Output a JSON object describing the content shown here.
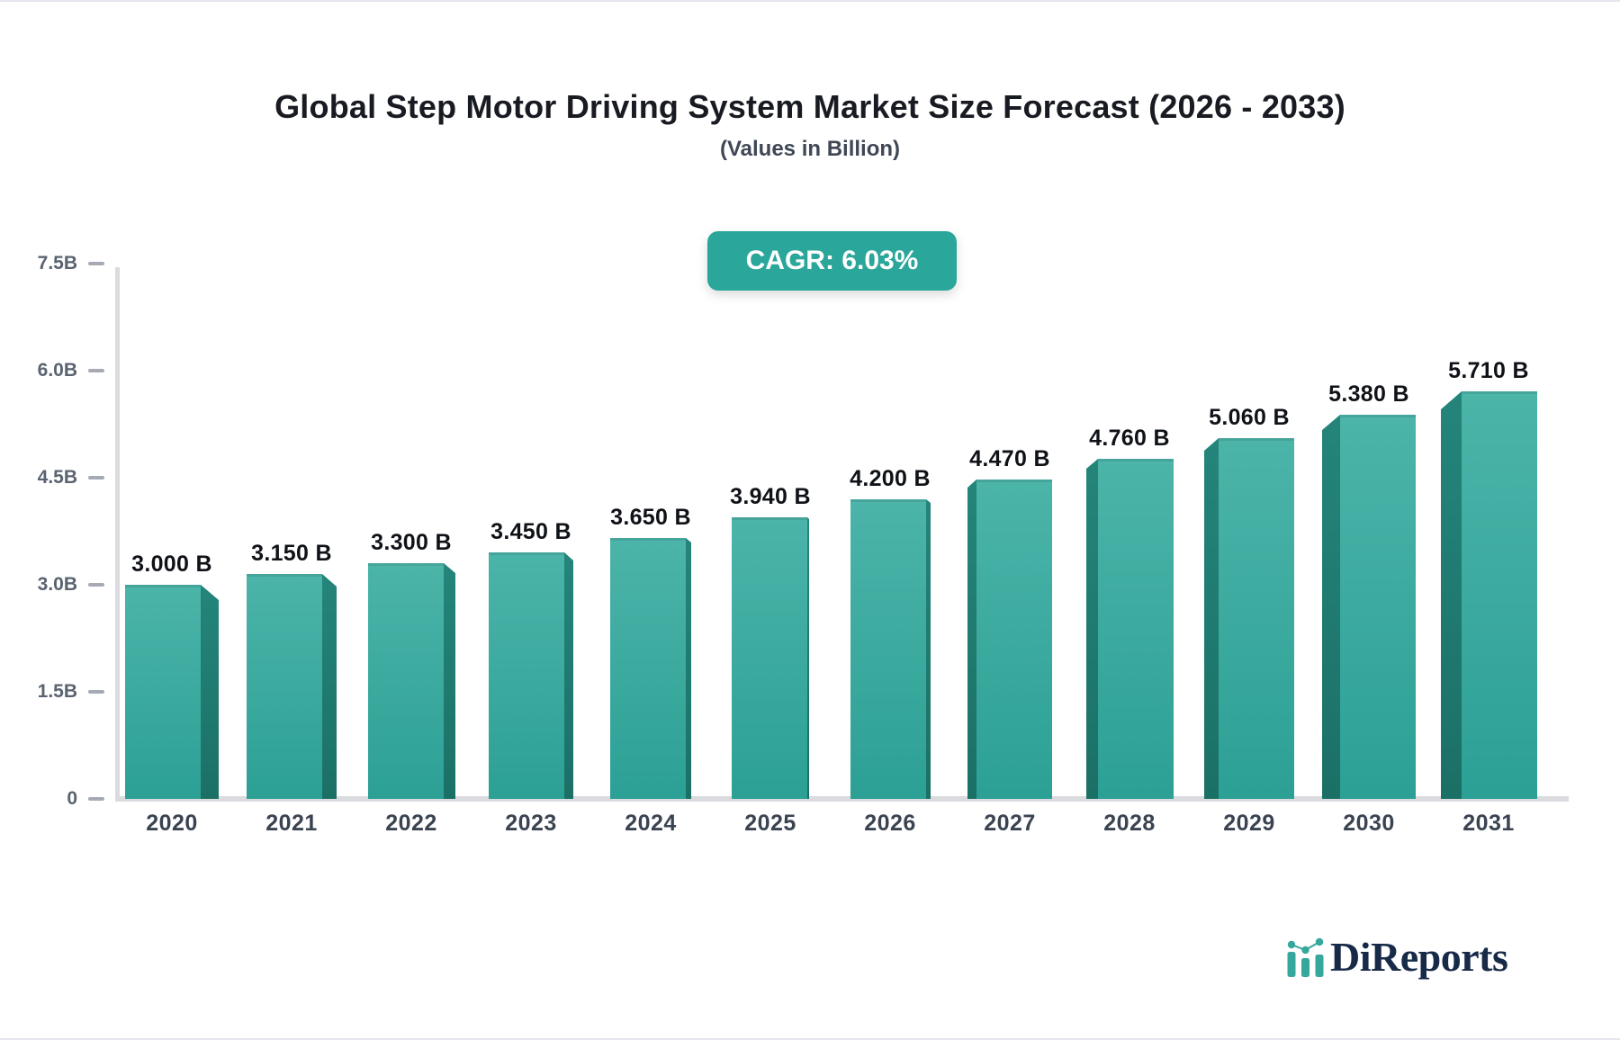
{
  "page": {
    "title": "Global Step Motor Driving System Market Size Forecast (2026 - 2033)",
    "subtitle": "(Values in Billion)",
    "cagr_badge": "CAGR: 6.03%"
  },
  "chart_data": {
    "type": "bar",
    "title": "Global Step Motor Driving System Market Size Forecast (2026 - 2033)",
    "subtitle": "(Values in Billion)",
    "cagr_label": "CAGR: 6.03%",
    "cagr_value_pct": 6.03,
    "unit": "Billion",
    "categories": [
      "2020",
      "2021",
      "2022",
      "2023",
      "2024",
      "2025",
      "2026",
      "2027",
      "2028",
      "2029",
      "2030",
      "2031"
    ],
    "values": [
      3.0,
      3.15,
      3.3,
      3.45,
      3.65,
      3.94,
      4.2,
      4.47,
      4.76,
      5.06,
      5.38,
      5.71
    ],
    "value_labels": [
      "3.000 B",
      "3.150 B",
      "3.300 B",
      "3.450 B",
      "3.650 B",
      "3.940 B",
      "4.200 B",
      "4.470 B",
      "4.760 B",
      "5.060 B",
      "5.380 B",
      "5.710 B"
    ],
    "y_ticks": [
      "0",
      "1.5B",
      "3.0B",
      "4.5B",
      "6.0B",
      "7.5B"
    ],
    "y_tick_values": [
      0,
      1.5,
      3.0,
      4.5,
      6.0,
      7.5
    ],
    "ylim": [
      0,
      7.5
    ],
    "grid": false,
    "legend": false,
    "bar_style": "3d-perspective",
    "colors": {
      "bar_top": "#4cb4a9",
      "bar_bottom": "#2ca095",
      "bar_side_top": "#24857b",
      "bar_side_bottom": "#1b7066",
      "badge_bg": "#2aa69a",
      "axis_line": "#d9dbdf",
      "tick_dash": "#a6abb3",
      "y_label": "#5a6370",
      "x_label": "#3a4351",
      "value_label": "#0f1217",
      "title": "#191b22",
      "subtitle": "#3f4755"
    }
  },
  "logo": {
    "text": "DiReports",
    "icon": "bar-chart-logo-icon",
    "text_color": "#172a47",
    "accent_color": "#35a79c"
  }
}
